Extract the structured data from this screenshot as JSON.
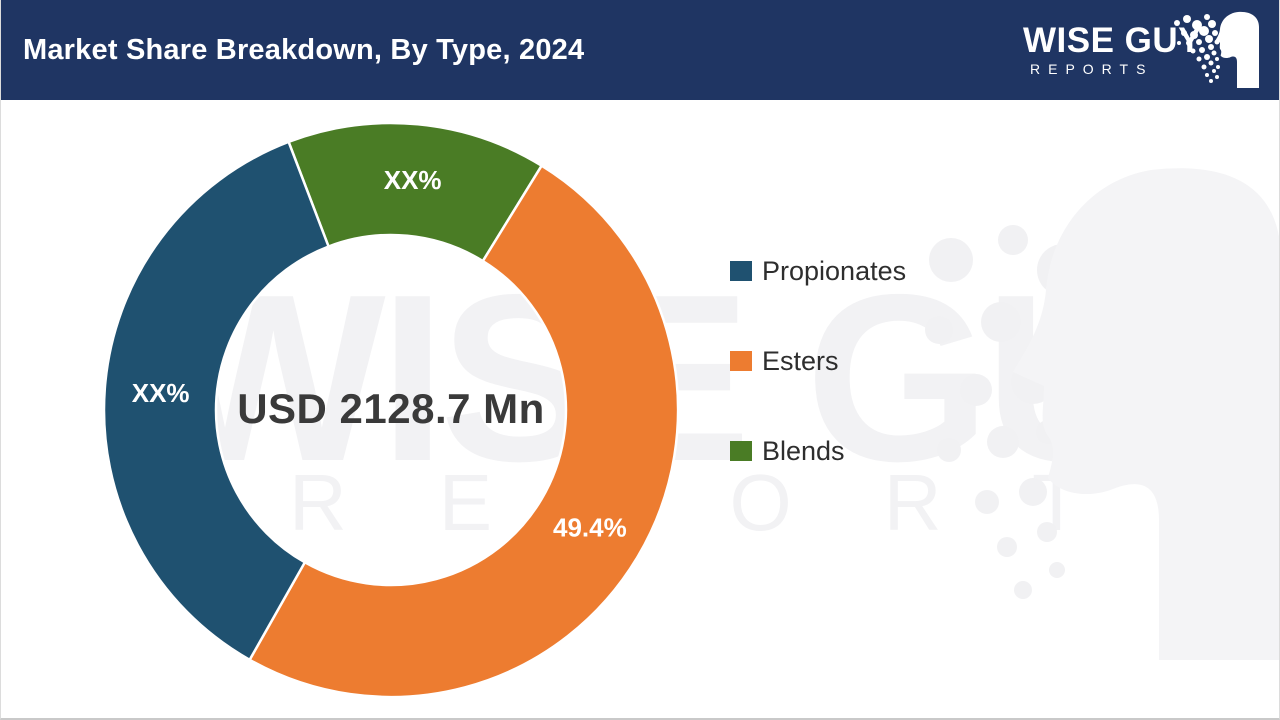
{
  "header": {
    "title": "Market Share Breakdown, By Type, 2024",
    "bg_color": "#1f3563",
    "logo": {
      "line1": "WISE GUY",
      "line2": "REPORTS"
    }
  },
  "watermark": {
    "line1": "WISE GUY",
    "line2": "REPORTS"
  },
  "chart_data": {
    "type": "pie",
    "subtype": "donut",
    "title": "Market Share Breakdown, By Type, 2024",
    "center_text": "USD 2128.7 Mn",
    "start_angle_deg_clockwise_from_12": -20.9,
    "outer_radius_px": 287,
    "inner_radius_px": 175,
    "segments": [
      {
        "name": "Blends",
        "value_pct": 14.6,
        "label": "XX%",
        "color": "#4a7c25"
      },
      {
        "name": "Esters",
        "value_pct": 49.4,
        "label": "49.4%",
        "color": "#ed7c30"
      },
      {
        "name": "Propionates",
        "value_pct": 36.0,
        "label": "XX%",
        "color": "#1f5170"
      }
    ],
    "legend_position": "right",
    "legend_order": [
      "Propionates",
      "Esters",
      "Blends"
    ]
  }
}
